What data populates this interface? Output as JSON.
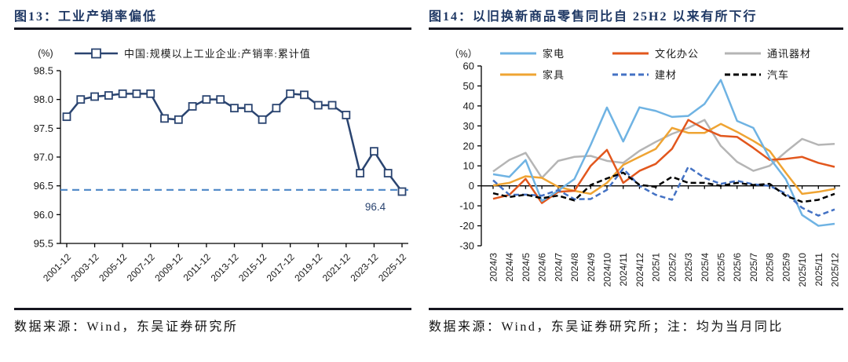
{
  "left_panel": {
    "title": "图13：工业产销率偏低",
    "footer": "数据来源：Wind，东吴证券研究所"
  },
  "right_panel": {
    "title": "图14：以旧换新商品零售同比自 25H2 以来有所下行",
    "footer": "数据来源：Wind，东吴证券研究所；注：均为当月同比"
  },
  "style": {
    "title_color": "#1F3864",
    "rule_color": "#15151f",
    "left_series_color": "#2A4470",
    "ref_line_color": "#4C86C6"
  },
  "chart_data": [
    {
      "type": "line",
      "title": "图13：工业产销率偏低",
      "unit_label": "(%)",
      "legend": "中国:规模以上工业企业:产销率:累计值",
      "legend_position": "top",
      "grid": false,
      "categories": [
        "2001-12",
        "2002-12",
        "2003-12",
        "2004-12",
        "2005-12",
        "2006-12",
        "2007-12",
        "2008-12",
        "2009-12",
        "2010-12",
        "2011-12",
        "2012-12",
        "2013-12",
        "2014-12",
        "2015-12",
        "2016-12",
        "2017-12",
        "2018-12",
        "2019-12",
        "2020-12",
        "2021-12",
        "2022-12",
        "2023-12",
        "2024-12",
        "2025-12"
      ],
      "values": [
        97.7,
        98.0,
        98.05,
        98.07,
        98.1,
        98.1,
        98.1,
        97.67,
        97.65,
        97.88,
        98.0,
        98.0,
        97.85,
        97.85,
        97.65,
        97.85,
        98.1,
        98.08,
        97.9,
        97.9,
        97.73,
        96.72,
        97.1,
        96.72,
        96.4
      ],
      "x_tick_every": 2,
      "ylim": [
        95.5,
        98.5
      ],
      "ytick_step": 0.5,
      "ref_line_value": 96.43,
      "last_point_label": "96.4",
      "line_color": "#2A4470",
      "marker": "square-open",
      "ref_line_color": "#4C86C6"
    },
    {
      "type": "line",
      "title": "图14：以旧换新商品零售同比自 25H2 以来有所下行",
      "unit_label": "（%）",
      "grid": false,
      "categories": [
        "2024/3",
        "2024/4",
        "2024/5",
        "2024/6",
        "2024/7",
        "2024/8",
        "2024/9",
        "2024/10",
        "2024/11",
        "2024/12",
        "2025/1",
        "2025/2",
        "2025/3",
        "2025/4",
        "2025/5",
        "2025/6",
        "2025/7",
        "2025/8",
        "2025/9",
        "2025/10",
        "2025/11",
        "2025/12"
      ],
      "ylim": [
        -30,
        60
      ],
      "ytick_step": 10,
      "legend_rows": [
        [
          "家电",
          "文化办公",
          "通讯器材"
        ],
        [
          "家具",
          "建材",
          "汽车"
        ]
      ],
      "series": [
        {
          "name": "通讯器材",
          "color": "#B5B5B5",
          "dash": null,
          "values": [
            7.2,
            13.0,
            16.5,
            4.0,
            12.5,
            14.5,
            15.0,
            12.5,
            11.5,
            17.5,
            22.0,
            26.0,
            29.0,
            33.0,
            20.0,
            12.0,
            7.5,
            10.0,
            17.0,
            23.5,
            20.5,
            21.0
          ]
        },
        {
          "name": "家具",
          "color": "#EFA433",
          "dash": null,
          "values": [
            0.2,
            1.5,
            4.8,
            4.0,
            -0.5,
            -2.5,
            -4.0,
            1.5,
            10.5,
            14.5,
            18.5,
            29.0,
            26.5,
            26.5,
            31.0,
            27.0,
            22.5,
            17.5,
            6.5,
            -4.0,
            -3.0,
            -1.5
          ]
        },
        {
          "name": "文化办公",
          "color": "#E2571D",
          "dash": null,
          "values": [
            -6.5,
            -4.5,
            3.5,
            -8.6,
            -3.0,
            -2.5,
            10.0,
            18.0,
            1.5,
            7.5,
            11.0,
            18.5,
            33.0,
            28.5,
            25.0,
            24.5,
            19.0,
            13.0,
            13.5,
            14.5,
            11.5,
            9.5
          ]
        },
        {
          "name": "家电",
          "color": "#6FB3E3",
          "dash": null,
          "values": [
            5.8,
            4.5,
            12.9,
            -7.6,
            -2.4,
            3.4,
            20.5,
            39.2,
            22.2,
            39.3,
            37.5,
            34.5,
            35.0,
            41.0,
            53.0,
            32.5,
            29.0,
            14.0,
            3.3,
            -14.6,
            -20.0,
            -19.0
          ]
        },
        {
          "name": "建材",
          "color": "#4472C4",
          "dash": "7 4",
          "values": [
            2.8,
            -4.5,
            -4.4,
            -4.9,
            -2.1,
            -6.7,
            -6.6,
            -2.0,
            8.6,
            0.0,
            -4.5,
            -7.0,
            9.5,
            4.0,
            1.0,
            2.5,
            0.8,
            0.0,
            -3.9,
            -11.0,
            -14.9,
            -11.8
          ]
        },
        {
          "name": "汽车",
          "color": "#000000",
          "dash": "7 4",
          "values": [
            -3.7,
            -5.6,
            -4.4,
            -6.2,
            -4.9,
            -7.3,
            0.4,
            3.7,
            6.6,
            0.5,
            -0.5,
            4.5,
            1.5,
            1.5,
            0.0,
            1.5,
            0.4,
            1.0,
            -5.0,
            -8.0,
            -7.0,
            -4.0
          ]
        }
      ]
    }
  ]
}
